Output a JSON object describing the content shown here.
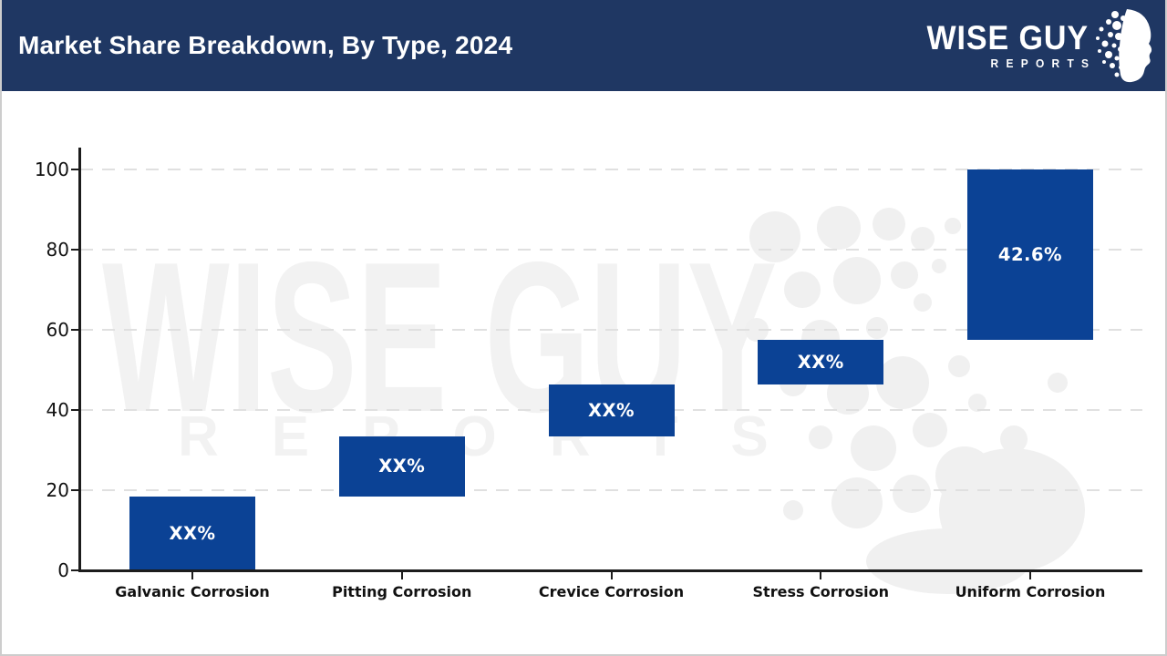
{
  "header": {
    "title": "Market Share Breakdown, By Type, 2024",
    "brand": {
      "line1": "WISE GUY",
      "line2": "REPORTS"
    }
  },
  "watermark": {
    "line1": "WISE GUY",
    "line2": "REPORTS"
  },
  "colors": {
    "header_bg": "#1f3763",
    "bar": "#0b4295",
    "bar_label": "#ffffff",
    "grid": "#e0e0e0",
    "axis": "#1c1c1c",
    "text": "#111111",
    "border": "#cdcdcd",
    "watermark": "#f2f2f2"
  },
  "chart_data": {
    "type": "bar",
    "subtype": "waterfall",
    "title": "Market Share Breakdown, By Type, 2024",
    "categories": [
      "Galvanic Corrosion",
      "Pitting Corrosion",
      "Crevice Corrosion",
      "Stress Corrosion",
      "Uniform Corrosion"
    ],
    "segments": [
      {
        "category": "Galvanic Corrosion",
        "start": 0,
        "end": 18.5,
        "label": "XX%"
      },
      {
        "category": "Pitting Corrosion",
        "start": 18.5,
        "end": 33.3,
        "label": "XX%"
      },
      {
        "category": "Crevice Corrosion",
        "start": 33.3,
        "end": 46.4,
        "label": "XX%"
      },
      {
        "category": "Stress Corrosion",
        "start": 46.4,
        "end": 57.4,
        "label": "XX%"
      },
      {
        "category": "Uniform Corrosion",
        "start": 57.4,
        "end": 100,
        "label": "42.6%"
      }
    ],
    "ylabel": "",
    "xlabel": "",
    "yticks": [
      0,
      20,
      40,
      60,
      80,
      100
    ],
    "ylim": [
      0,
      105
    ],
    "grid": {
      "horizontal": true,
      "style": "dashed",
      "color": "#e0e0e0"
    },
    "legend": null,
    "bar_color": "#0b4295",
    "value_label_color": "#ffffff"
  }
}
